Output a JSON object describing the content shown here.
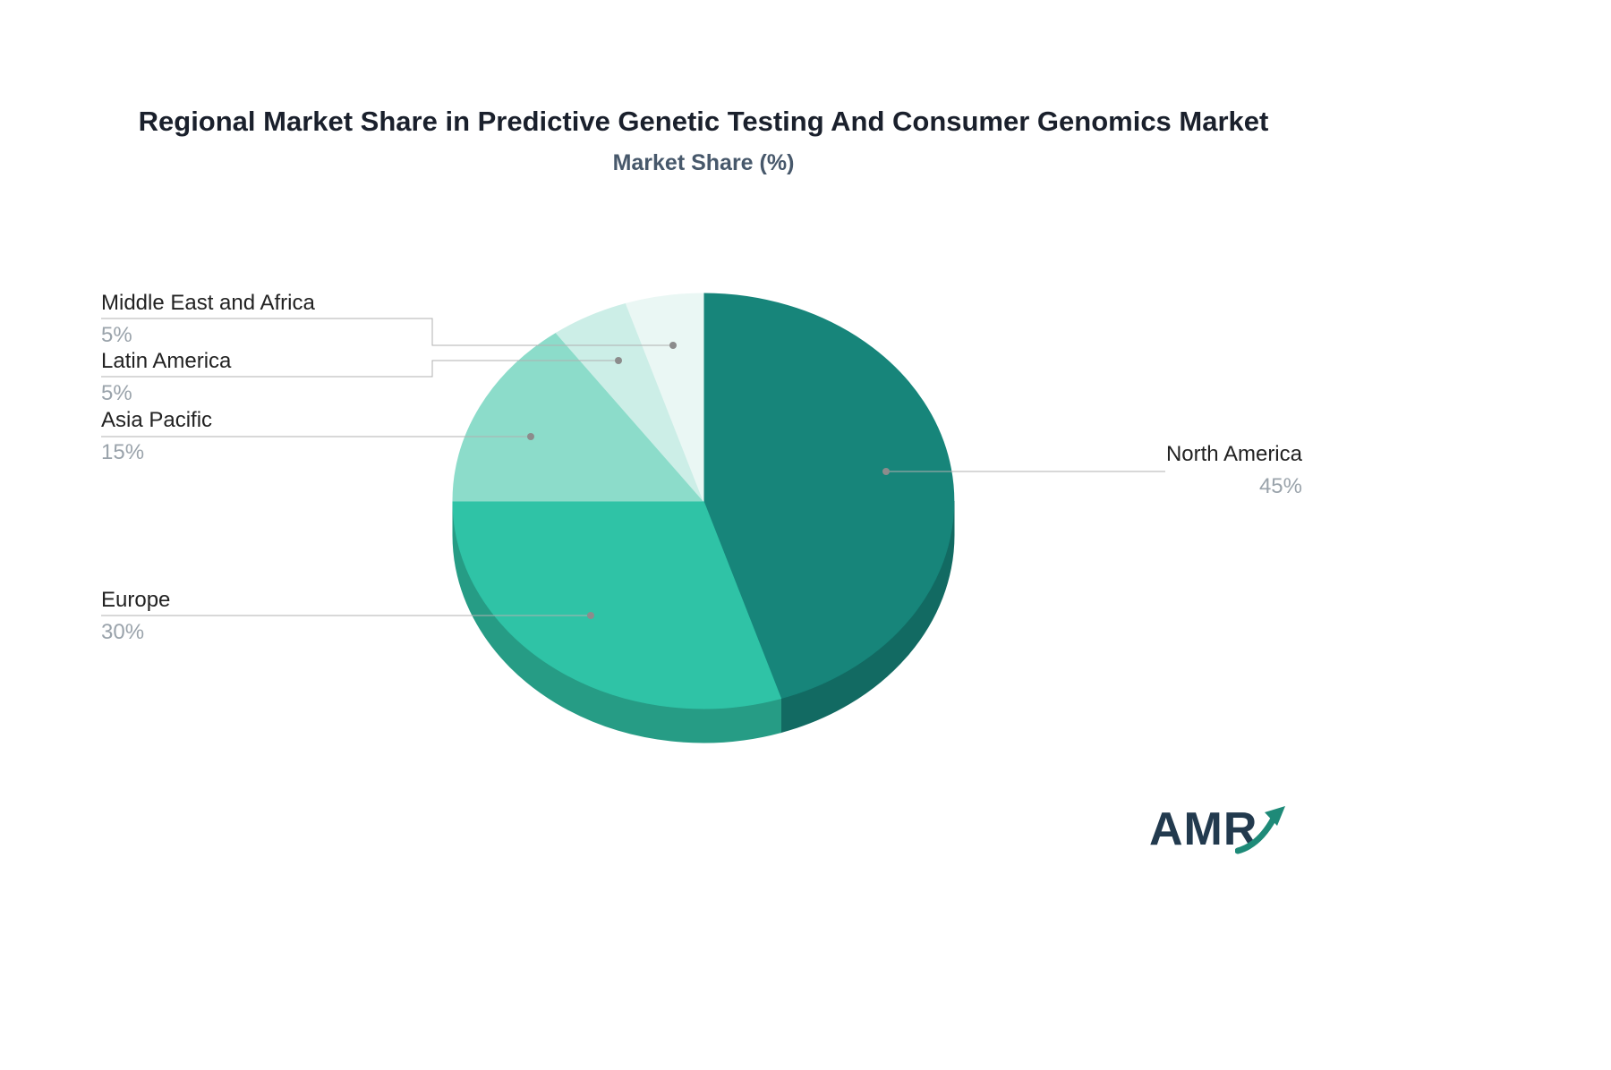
{
  "chart_data": {
    "type": "pie",
    "title": "Regional Market Share in Predictive Genetic Testing And Consumer Genomics Market",
    "subtitle": "Market Share (%)",
    "unit": "%",
    "legend_position": "none",
    "start_angle": "top",
    "direction": "clockwise",
    "style": "3d-pie",
    "slices": [
      {
        "name": "North America",
        "value": 45,
        "label": "45%",
        "color": "#17857a"
      },
      {
        "name": "Europe",
        "value": 30,
        "label": "30%",
        "color": "#2fc3a6"
      },
      {
        "name": "Asia Pacific",
        "value": 15,
        "label": "15%",
        "color": "#8cdcca"
      },
      {
        "name": "Latin America",
        "value": 5,
        "label": "5%",
        "color": "#cceee7"
      },
      {
        "name": "Middle East and Africa",
        "value": 5,
        "label": "5%",
        "color": "#eaf7f4"
      }
    ]
  },
  "logo": {
    "text": "AMR",
    "accent_color": "#1e8a78"
  },
  "colors": {
    "title": "#1a202c",
    "subtitle": "#47586b",
    "label_name": "#222222",
    "label_value": "#9aa3ab",
    "leader_line": "#b0b0b0",
    "leader_dot": "#8c8c8c"
  }
}
